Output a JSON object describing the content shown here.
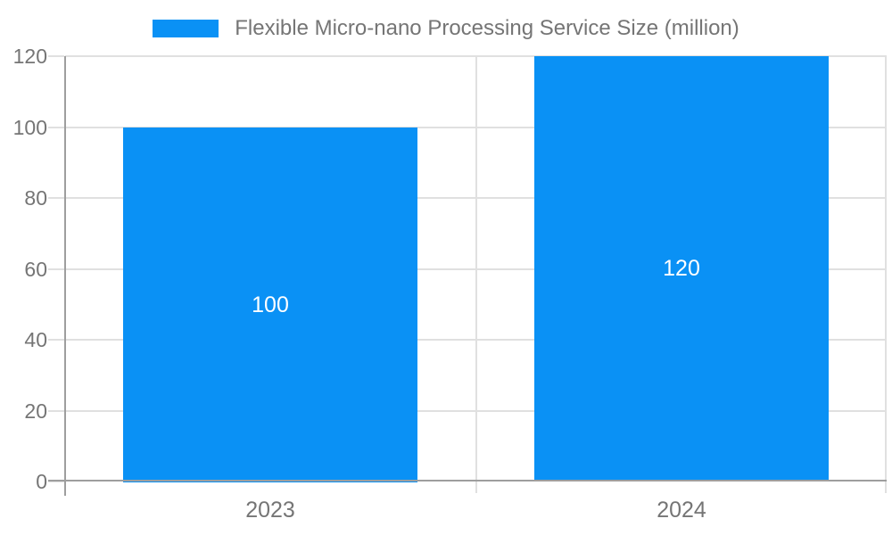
{
  "chart_data": {
    "type": "bar",
    "title": "Flexible Micro-nano Processing Service Size (million)",
    "categories": [
      "2023",
      "2024"
    ],
    "series": [
      {
        "name": "Flexible Micro-nano Processing Service Size (million)",
        "values": [
          100,
          120
        ]
      }
    ],
    "data_labels": [
      "100",
      "120"
    ],
    "xlabel": "",
    "ylabel": "",
    "ylim": [
      0,
      120
    ],
    "yticks": [
      0,
      20,
      40,
      60,
      80,
      100,
      120
    ],
    "grid": true,
    "legend_position": "top"
  },
  "colors": {
    "bar": "#0a91f5",
    "grid": "#e0e0e0",
    "axis": "#9e9e9e",
    "text": "#757575",
    "value_label": "#ffffff",
    "background": "#ffffff"
  }
}
